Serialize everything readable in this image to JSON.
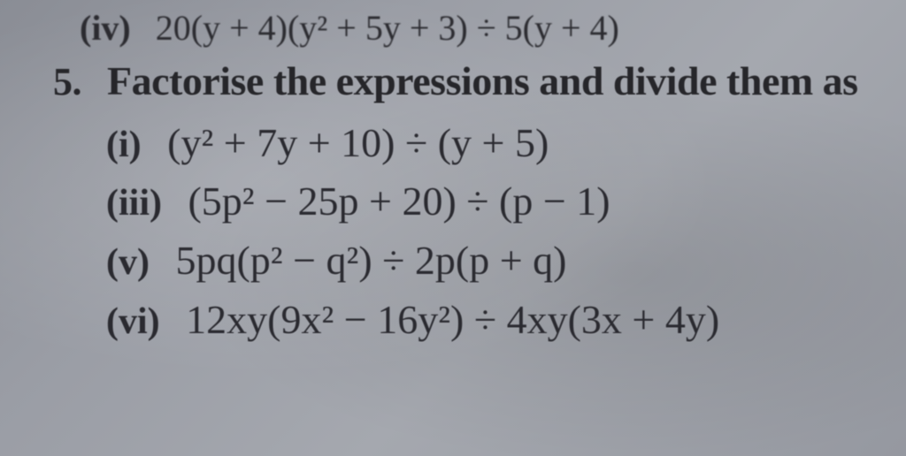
{
  "page": {
    "background_color": "#9598a0",
    "text_color": "#2a2a2e",
    "font_family": "Times New Roman",
    "topline": {
      "roman": "(iv)",
      "expr": "20(y + 4)(y² + 5y + 3) ÷ 5(y + 4)"
    },
    "instruction": {
      "number": "5.",
      "text": "Factorise the expressions and divide them as"
    },
    "items": [
      {
        "roman": "(i)",
        "expr": "(y² + 7y + 10) ÷ (y + 5)"
      },
      {
        "roman": "(iii)",
        "expr": "(5p² − 25p + 20) ÷ (p − 1)"
      },
      {
        "roman": "(v)",
        "expr": "5pq(p² − q²) ÷ 2p(p + q)"
      },
      {
        "roman": "(vi)",
        "expr": "12xy(9x² − 16y²) ÷ 4xy(3x + 4y)"
      }
    ]
  }
}
